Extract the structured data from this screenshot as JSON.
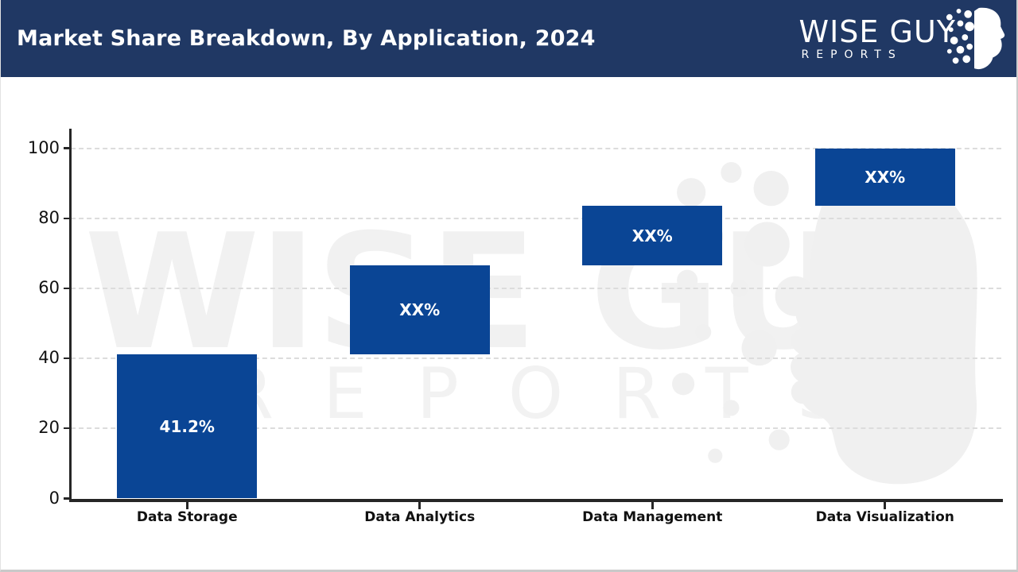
{
  "header": {
    "title": "Market Share Breakdown, By Application, 2024",
    "logo": {
      "name": "WISE GUY",
      "sub": "REPORTS",
      "head_icon": "dotted-face-profile"
    }
  },
  "watermark": {
    "line1": "WISE GUY",
    "line2": "REPORTS",
    "head_icon": "dotted-face-profile"
  },
  "chart_data": {
    "type": "bar",
    "variant": "waterfall-stacked-market-share",
    "title": "Market Share Breakdown, By Application, 2024",
    "categories": [
      "Data Storage",
      "Data Analytics",
      "Data Management",
      "Data Visualization"
    ],
    "series": [
      {
        "name": "Market share (%)",
        "segments": [
          {
            "category": "Data Storage",
            "start": 0,
            "end": 41.2,
            "value": 41.2,
            "label": "41.2%"
          },
          {
            "category": "Data Analytics",
            "start": 41.2,
            "end": 66.5,
            "value": 25.3,
            "label": "XX%"
          },
          {
            "category": "Data Management",
            "start": 66.5,
            "end": 83.5,
            "value": 17.0,
            "label": "XX%"
          },
          {
            "category": "Data Visualization",
            "start": 83.5,
            "end": 100,
            "value": 16.5,
            "label": "XX%"
          }
        ]
      }
    ],
    "xlabel": "",
    "ylabel": "",
    "ylim": [
      0,
      100
    ],
    "yticks": [
      0,
      20,
      40,
      60,
      80,
      100
    ],
    "grid": "horizontal-dashed",
    "legend": "none",
    "bar_color": "#0a4595",
    "bar_label_color": "#ffffff"
  },
  "colors": {
    "header_bg": "#203864",
    "bar": "#0a4595",
    "gridline": "#dcdcdc",
    "axis": "#262626",
    "watermark": "#f1f1f1",
    "page_bg": "#ffffff"
  }
}
